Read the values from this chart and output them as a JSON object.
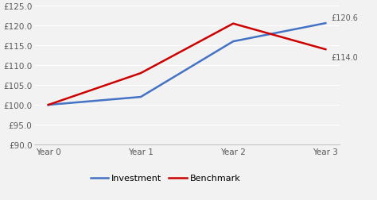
{
  "x_labels": [
    "Year 0",
    "Year 1",
    "Year 2",
    "Year 3"
  ],
  "x_values": [
    0,
    1,
    2,
    3
  ],
  "investment_values": [
    100.0,
    102.0,
    116.0,
    120.6
  ],
  "benchmark_values": [
    100.0,
    108.0,
    120.5,
    114.0
  ],
  "investment_color": "#4472C4",
  "benchmark_color": "#CC0000",
  "ylim": [
    90.0,
    125.0
  ],
  "yticks": [
    90.0,
    95.0,
    100.0,
    105.0,
    110.0,
    115.0,
    120.0,
    125.0
  ],
  "investment_label": "Investment",
  "benchmark_label": "Benchmark",
  "annotation_investment": "£120.6",
  "annotation_benchmark": "£114.0",
  "bg_color": "#f2f2f2",
  "plot_bg_color": "#f2f2f2",
  "grid_color": "#ffffff",
  "tick_color": "#595959",
  "linewidth": 1.8
}
